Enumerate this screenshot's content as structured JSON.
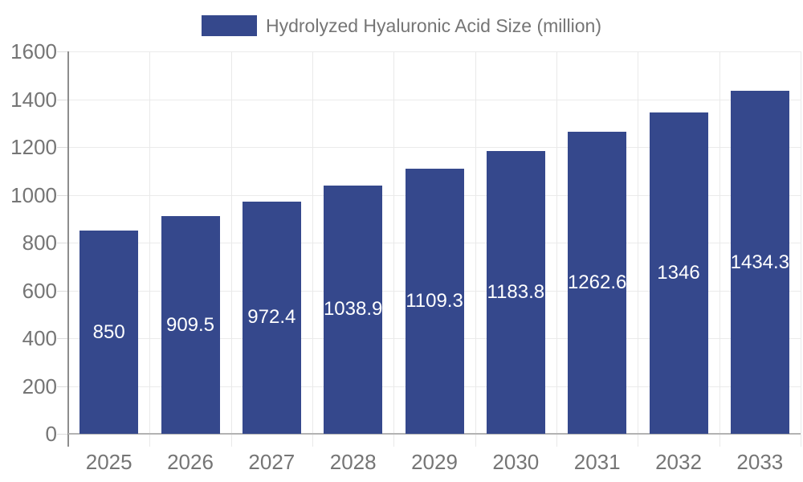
{
  "legend": {
    "label": "Hydrolyzed Hyaluronic Acid Size (million)",
    "swatch_color": "#35488C"
  },
  "chart_data": {
    "type": "bar",
    "title": "Hydrolyzed Hyaluronic Acid Size (million)",
    "categories": [
      "2025",
      "2026",
      "2027",
      "2028",
      "2029",
      "2030",
      "2031",
      "2032",
      "2033"
    ],
    "values": [
      850,
      909.5,
      972.4,
      1038.9,
      1109.3,
      1183.8,
      1262.6,
      1346,
      1434.3
    ],
    "value_labels": [
      "850",
      "909.5",
      "972.4",
      "1038.9",
      "1109.3",
      "1183.8",
      "1262.6",
      "1346",
      "1434.3"
    ],
    "series": [
      {
        "name": "Hydrolyzed Hyaluronic Acid Size (million)",
        "values": [
          850,
          909.5,
          972.4,
          1038.9,
          1109.3,
          1183.8,
          1262.6,
          1346,
          1434.3
        ]
      }
    ],
    "xlabel": "",
    "ylabel": "",
    "ylim": [
      0,
      1600
    ],
    "y_ticks": [
      0,
      200,
      400,
      600,
      800,
      1000,
      1200,
      1400,
      1600
    ],
    "grid": true,
    "legend_position": "top",
    "bar_color": "#35488C",
    "bar_label_color": "#FFFFFF",
    "axis_text_color": "#757575"
  }
}
